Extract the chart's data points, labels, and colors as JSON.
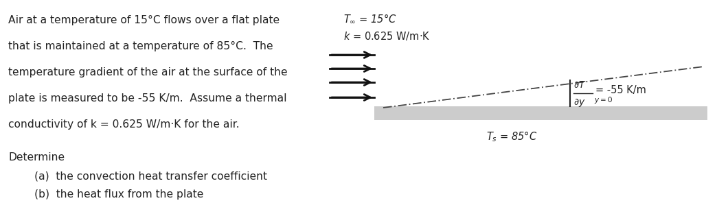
{
  "bg_color": "#ffffff",
  "text_color": "#222222",
  "left_text_lines": [
    "Air at a temperature of 15°C flows over a flat plate",
    "that is maintained at a temperature of 85°C.  The",
    "temperature gradient of the air at the surface of the",
    "plate is measured to be -55 K/m.  Assume a thermal",
    "conductivity of k = 0.625 W/m·K for the air."
  ],
  "determine_text": "Determine",
  "items": [
    "(a)  the convection heat transfer coefficient",
    "(b)  the heat flux from the plate"
  ],
  "label_T_inf": "$T_{\\infty}$ = 15°C",
  "label_k": "$k$ = 0.625 W/m·K",
  "label_Ts": "$T_s$ = 85°C",
  "label_gradient": "= -55 K/m",
  "plate_color": "#cccccc",
  "curve_color": "#444444",
  "arrow_color": "#111111"
}
